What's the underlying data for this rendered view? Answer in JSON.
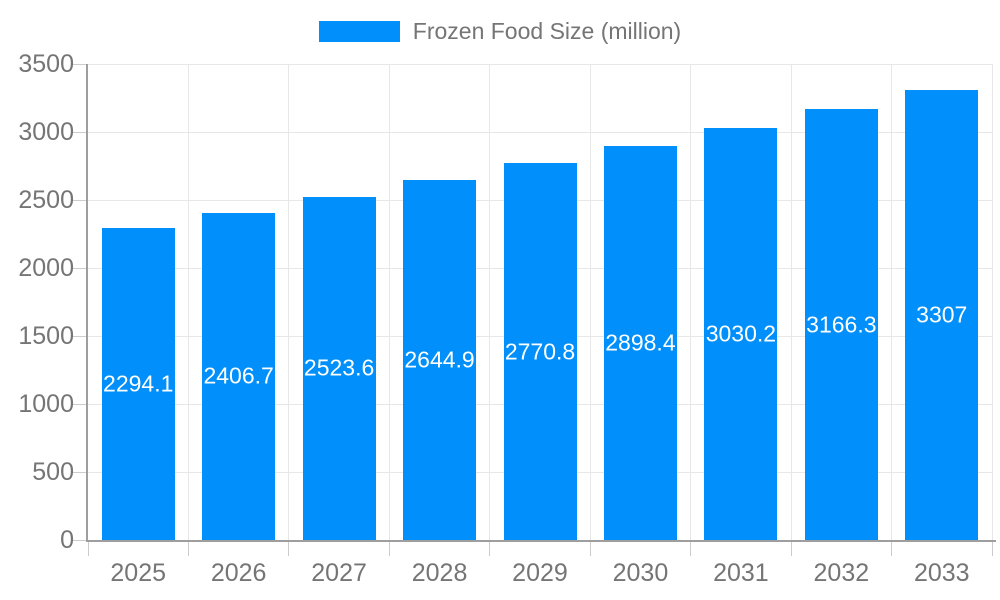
{
  "chart_data": {
    "type": "bar",
    "title": "",
    "legend": "Frozen Food Size (million)",
    "legend_position": "top",
    "categories": [
      "2025",
      "2026",
      "2027",
      "2028",
      "2029",
      "2030",
      "2031",
      "2032",
      "2033"
    ],
    "values": [
      2294.1,
      2406.7,
      2523.6,
      2644.9,
      2770.8,
      2898.4,
      3030.2,
      3166.3,
      3307
    ],
    "value_labels": [
      "2294.1",
      "2406.7",
      "2523.6",
      "2644.9",
      "2770.8",
      "2898.4",
      "3030.2",
      "3166.3",
      "3307"
    ],
    "xlabel": "",
    "ylabel": "",
    "ylim": [
      0,
      3500
    ],
    "ytick_step": 500,
    "ytick_labels": [
      "0",
      "500",
      "1000",
      "1500",
      "2000",
      "2500",
      "3000",
      "3500"
    ],
    "grid": true,
    "colors": {
      "bar": "#008FFB",
      "grid_line": "#e7e7e7",
      "axis_line": "#9e9e9e",
      "tick_line": "#cccccc",
      "axis_text": "#757575",
      "legend_text": "#757575",
      "value_text": "#ffffff"
    }
  }
}
